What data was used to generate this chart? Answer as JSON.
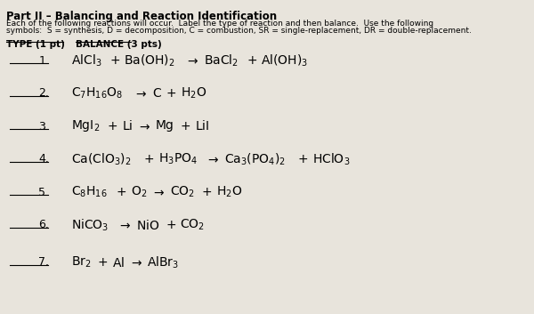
{
  "bg_color": "#e8e4dc",
  "title": "Part II – Balancing and Reaction Identification",
  "subtitle1": "Each of the following reactions will occur.  Label the type of reaction and then balance.  Use the following",
  "subtitle2": "symbols:  S = synthesis, D = decomposition, C = combustion, SR = single-replacement, DR = double-replacement.",
  "header_type": "TYPE (1 pt)",
  "header_balance": "BALANCE (3 pts)",
  "reactions": [
    {
      "num": "1.",
      "parts": [
        {
          "text": "AlCl",
          "sub": "3",
          "post": " +"
        },
        {
          "text": "Ba(OH)",
          "sub": "2",
          "post": " →"
        },
        {
          "text": "BaCl",
          "sub": "2",
          "post": " +"
        },
        {
          "text": "Al(OH)",
          "sub": "3",
          "post": ""
        }
      ]
    },
    {
      "num": "2.",
      "parts": [
        {
          "text": "C",
          "sub": "7",
          "mid": "H",
          "sub2": "16",
          "mid2": "O",
          "sub3": "8",
          "post": " →"
        },
        {
          "text": "C +",
          "sub": "",
          "post": ""
        },
        {
          "text": "H",
          "sub": "2",
          "mid": "O",
          "sub2": "",
          "post": ""
        }
      ]
    },
    {
      "num": "3.",
      "parts": [
        {
          "text": "MgI",
          "sub": "2",
          "post": " +"
        },
        {
          "text": "Li",
          "sub": "",
          "post": " →"
        },
        {
          "text": "Mg +",
          "sub": "",
          "post": ""
        },
        {
          "text": "LiI",
          "sub": "",
          "post": ""
        }
      ]
    },
    {
      "num": "4.",
      "parts": [
        {
          "text": "Ca(ClO",
          "sub": "3",
          "post": ")",
          "sub2": "2",
          "post2": " +"
        },
        {
          "text": "H",
          "sub": "3",
          "mid": "PO",
          "sub3": "4",
          "post": " →"
        },
        {
          "text": "Ca",
          "sub": "3",
          "post": "(PO",
          "sub4": "4",
          "post2": ")",
          "sub5": "2",
          "post3": " +"
        },
        {
          "text": "HClO",
          "sub": "3",
          "post": ""
        }
      ]
    },
    {
      "num": "5.",
      "parts": [
        {
          "text": "C",
          "sub": "8",
          "mid": "H",
          "sub2": "16",
          "post": " +"
        },
        {
          "text": "O",
          "sub": "2",
          "post": " →"
        },
        {
          "text": "CO",
          "sub": "2",
          "post": " +"
        },
        {
          "text": "H",
          "sub": "2",
          "mid2": "O",
          "post": ""
        }
      ]
    },
    {
      "num": "6.",
      "parts": [
        {
          "text": "NiCO",
          "sub": "3",
          "post": " →"
        },
        {
          "text": "NiO +",
          "sub": "",
          "post": ""
        },
        {
          "text": "CO",
          "sub": "2",
          "post": ""
        }
      ]
    },
    {
      "num": "7.",
      "parts": [
        {
          "text": "Br",
          "sub": "2",
          "post": " +"
        },
        {
          "text": "Al",
          "sub": "",
          "post": " →"
        },
        {
          "text": "AlBr",
          "sub": "3",
          "post": ""
        }
      ]
    }
  ]
}
